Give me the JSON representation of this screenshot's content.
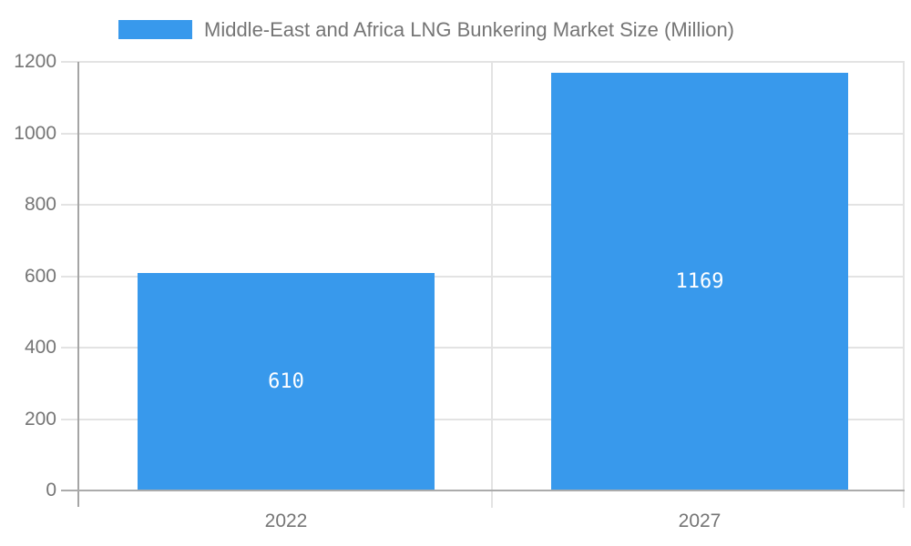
{
  "chart_data": {
    "type": "bar",
    "title": "Middle-East and Africa LNG Bunkering Market Size (Million)",
    "categories": [
      "2022",
      "2027"
    ],
    "values": [
      610,
      1169
    ],
    "series": [
      {
        "name": "Middle-East and Africa LNG Bunkering Market Size (Million)",
        "values": [
          610,
          1169
        ]
      }
    ],
    "xlabel": "",
    "ylabel": "",
    "ylim": [
      0,
      1200
    ],
    "yticks": [
      0,
      200,
      400,
      600,
      800,
      1000,
      1200
    ],
    "grid": true,
    "legend_position": "top"
  },
  "colors": {
    "bar": "#3899ec",
    "bar_label_text": "#ffffff",
    "axis_text": "#757575",
    "gridline": "#e3e3e3",
    "axis_line": "#ababab"
  }
}
